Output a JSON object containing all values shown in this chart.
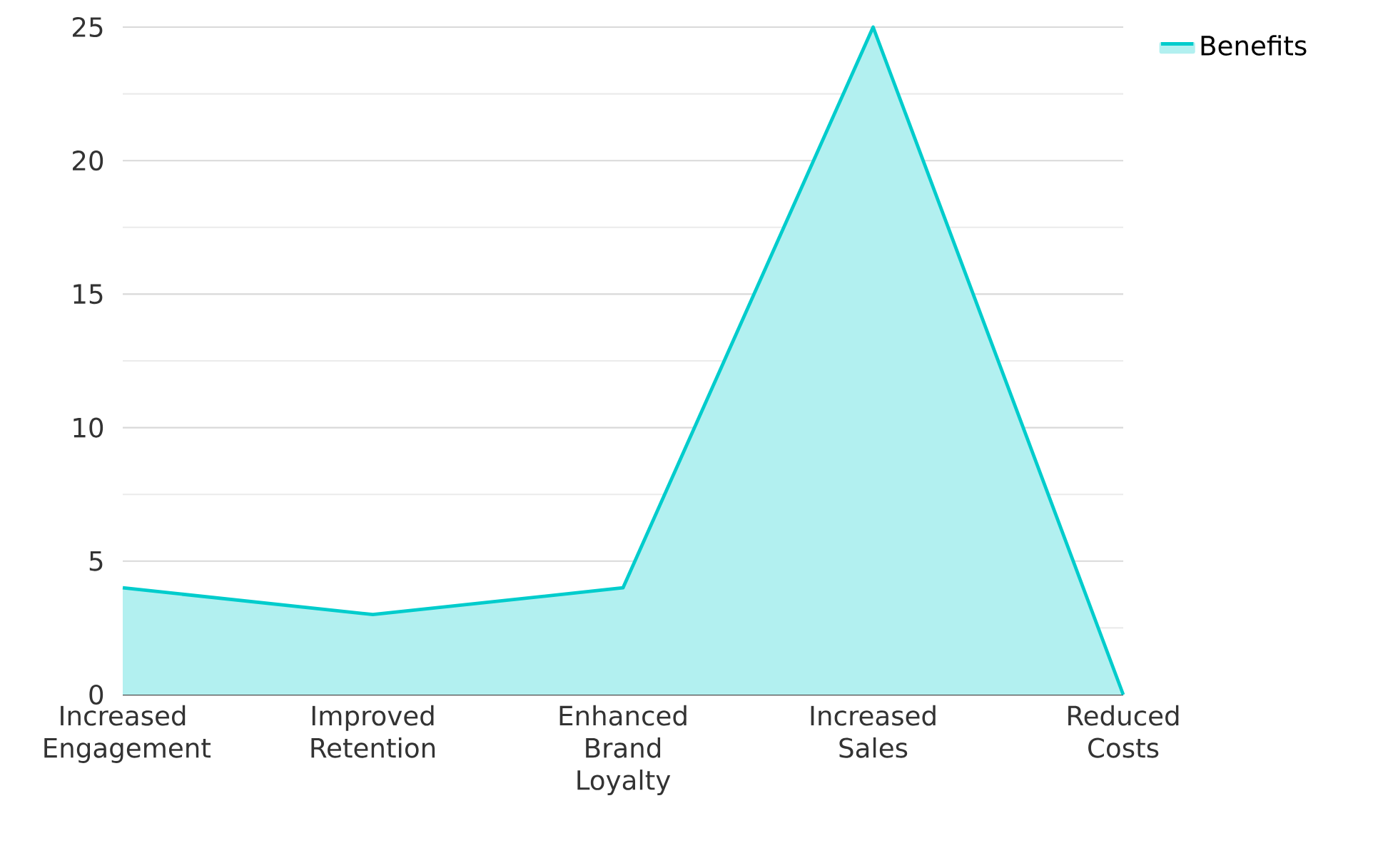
{
  "chart_data": {
    "type": "area",
    "categories": [
      "Increased Engagement",
      "Improved Retention",
      "Enhanced Brand Loyalty",
      "Increased Sales",
      "Reduced Costs"
    ],
    "series": [
      {
        "name": "Benefits",
        "color": "#00cccc",
        "values": [
          4,
          3,
          4,
          25,
          0
        ]
      }
    ],
    "ylim": [
      0,
      25
    ],
    "yticks": [
      0,
      5,
      10,
      15,
      20,
      25
    ],
    "grid": "y",
    "legend": "top right",
    "marker": "none"
  }
}
